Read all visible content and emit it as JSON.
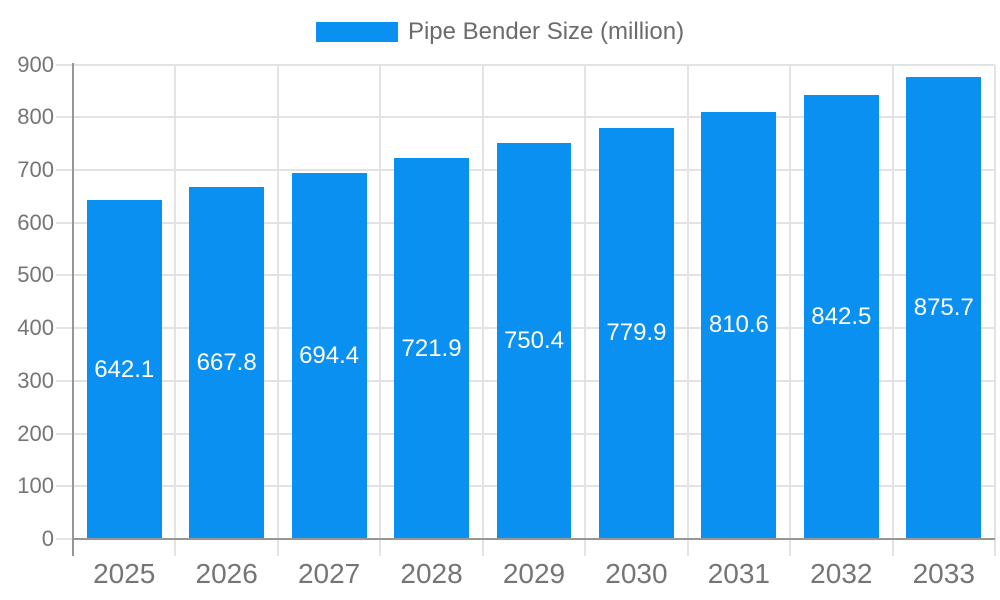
{
  "legend": {
    "label": "Pipe Bender Size (million)"
  },
  "chart_data": {
    "type": "bar",
    "title": "Pipe Bender Size (million)",
    "categories": [
      "2025",
      "2026",
      "2027",
      "2028",
      "2029",
      "2030",
      "2031",
      "2032",
      "2033"
    ],
    "values": [
      642.1,
      667.8,
      694.4,
      721.9,
      750.4,
      779.9,
      810.6,
      842.5,
      875.7
    ],
    "series_name": "Pipe Bender Size (million)",
    "xlabel": "",
    "ylabel": "",
    "ylim": [
      0,
      900
    ],
    "ytick_step": 100,
    "yticks": [
      0,
      100,
      200,
      300,
      400,
      500,
      600,
      700,
      800,
      900
    ],
    "grid": true,
    "legend_position": "top",
    "value_labels": "inside-center",
    "colors": {
      "bar": "#0a90f0",
      "value_label": "#ffffff",
      "axis_label": "#757575",
      "legend_text": "#6b6b6b",
      "axis_line": "#969696",
      "gridline": "#e3e3e3"
    }
  }
}
